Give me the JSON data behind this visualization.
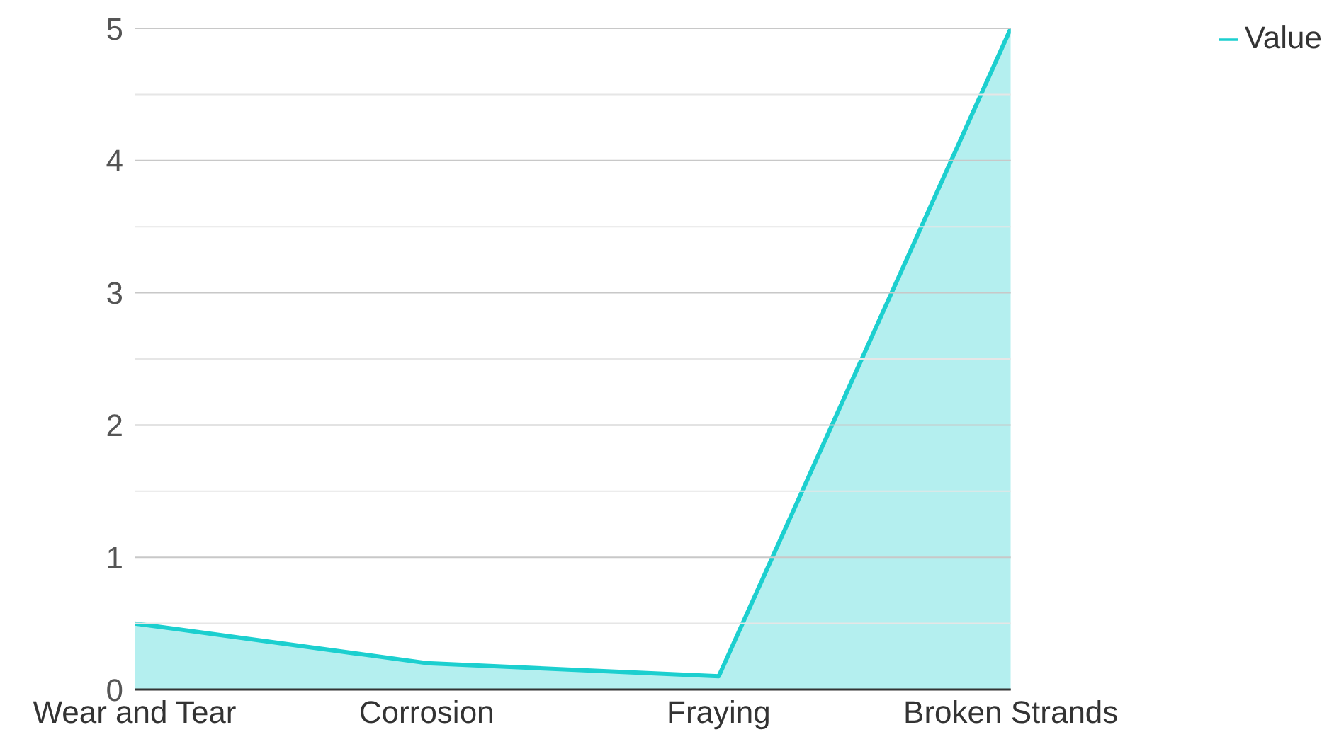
{
  "chart_data": {
    "type": "area",
    "categories": [
      "Wear and Tear",
      "Corrosion",
      "Fraying",
      "Broken Strands"
    ],
    "series": [
      {
        "name": "Value",
        "color": "#1ccfcf",
        "values": [
          0.5,
          0.2,
          0.1,
          5
        ]
      }
    ],
    "ylim": [
      0,
      5
    ],
    "yticks": [
      0,
      {
        "value": 0.5,
        "label": null
      },
      1,
      {
        "value": 1.5,
        "label": null
      },
      2,
      {
        "value": 2.5,
        "label": null
      },
      3,
      {
        "value": 3.5,
        "label": null
      },
      4,
      {
        "value": 4.5,
        "label": null
      },
      5
    ],
    "grid": "y",
    "legend": "top right"
  }
}
